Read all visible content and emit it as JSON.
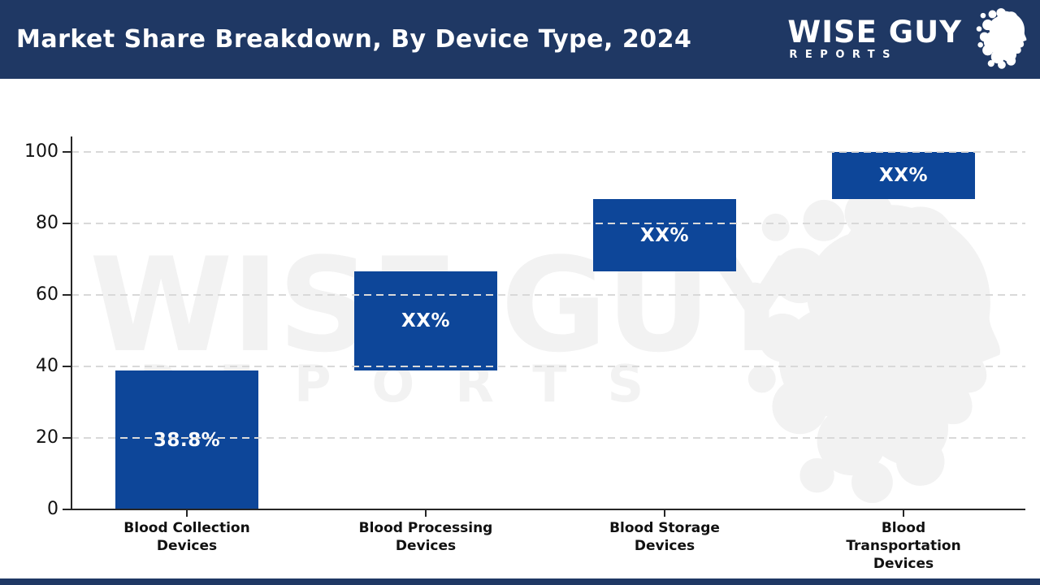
{
  "header": {
    "logo": {
      "line1": "WISE GUY",
      "line2": "REPORTS"
    }
  },
  "watermark": {
    "line1": "WISE GUY",
    "line2": "REPORTS"
  },
  "colors": {
    "header_bg": "#1f3864",
    "bar": "#0d4699",
    "bar_label": "#ffffff",
    "axis": "#262626",
    "grid": "#d9d9d9",
    "watermark": "#f2f2f2"
  },
  "chart_data": {
    "type": "bar",
    "subtype": "waterfall",
    "title": "Market Share Breakdown, By Device Type, 2024",
    "categories": [
      "Blood Collection\nDevices",
      "Blood Processing\nDevices",
      "Blood Storage\nDevices",
      "Blood\nTransportation\nDevices"
    ],
    "series": [
      {
        "name": "Market share (%)",
        "segments": [
          {
            "category": "Blood Collection Devices",
            "start": 0,
            "end": 38.8,
            "label": "38.8%"
          },
          {
            "category": "Blood Processing Devices",
            "start": 38.8,
            "end": 66.6,
            "label": "XX%"
          },
          {
            "category": "Blood Storage Devices",
            "start": 66.6,
            "end": 86.8,
            "label": "XX%"
          },
          {
            "category": "Blood Transportation Devices",
            "start": 86.8,
            "end": 100,
            "label": "XX%"
          }
        ]
      }
    ],
    "ylim": [
      0,
      105
    ],
    "yticks": [
      0,
      20,
      40,
      60,
      80,
      100
    ],
    "grid": "horizontal dashed",
    "legend": false
  }
}
